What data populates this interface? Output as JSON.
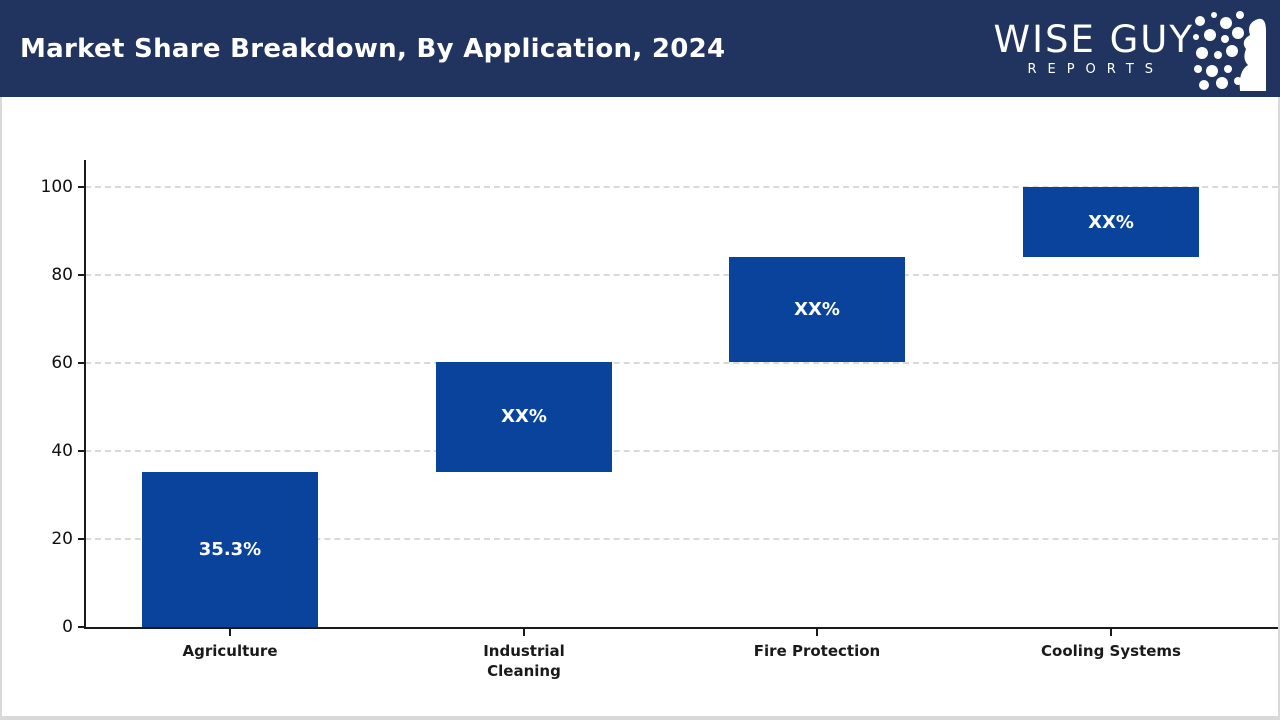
{
  "header": {
    "title": "Market Share Breakdown, By Application, 2024",
    "logo": {
      "line1": "WISE GUY",
      "line2": "REPORTS"
    }
  },
  "watermark": {
    "line1": "WISE GUY",
    "line2": "REPORTS"
  },
  "chart_data": {
    "type": "bar",
    "subtype": "waterfall",
    "title": "Market Share Breakdown, By Application, 2024",
    "categories": [
      "Agriculture",
      "Industrial Cleaning",
      "Fire Protection",
      "Cooling Systems"
    ],
    "category_label_lines": [
      [
        "Agriculture"
      ],
      [
        "Industrial",
        "Cleaning"
      ],
      [
        "Fire Protection"
      ],
      [
        "Cooling Systems"
      ]
    ],
    "segments": [
      {
        "category": "Agriculture",
        "start": 0,
        "end": 35.3,
        "label": "35.3%"
      },
      {
        "category": "Industrial Cleaning",
        "start": 35.3,
        "end": 60.3,
        "label": "XX%"
      },
      {
        "category": "Fire Protection",
        "start": 60.3,
        "end": 84,
        "label": "XX%"
      },
      {
        "category": "Cooling Systems",
        "start": 84,
        "end": 100,
        "label": "XX%"
      }
    ],
    "ylim": [
      0,
      100
    ],
    "yticks": [
      0,
      20,
      40,
      60,
      80,
      100
    ],
    "xlabel": "",
    "ylabel": "",
    "grid": "horizontal-dashed",
    "legend": "none",
    "colors": {
      "bar": "#09439c",
      "bar_label": "#ffffff",
      "header_bg": "#20345f",
      "gridline": "#d9d9d9",
      "axis": "#1a1a1a",
      "watermark": "#f2f2f3"
    }
  }
}
